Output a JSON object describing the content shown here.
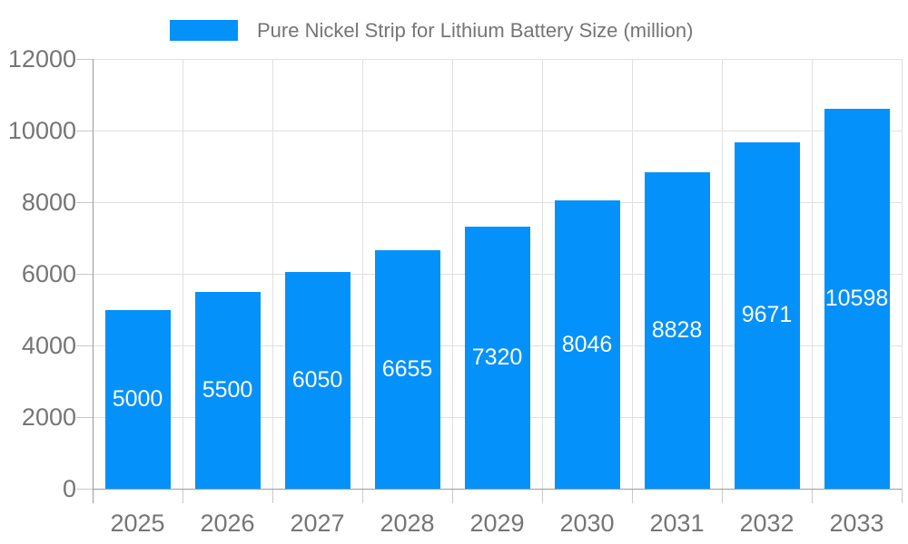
{
  "chart_data": {
    "type": "bar",
    "title": "Pure Nickel Strip for Lithium Battery Size (million)",
    "series_label": "Pure Nickel Strip for Lithium Battery Size (million)",
    "categories": [
      "2025",
      "2026",
      "2027",
      "2028",
      "2029",
      "2030",
      "2031",
      "2032",
      "2033"
    ],
    "values": [
      5000,
      5500,
      6050,
      6655,
      7320,
      8046,
      8828,
      9671,
      10598
    ],
    "xlabel": "",
    "ylabel": "",
    "ylim": [
      0,
      12000
    ],
    "ytick_interval": 2000,
    "ytick_labels": [
      "0",
      "2000",
      "4000",
      "6000",
      "8000",
      "10000",
      "12000"
    ],
    "grid": true,
    "legend_position": "top-center",
    "bar_value_labels_inside": true,
    "colors": {
      "bar": "#0591fa",
      "axis_line": "#9a9a9a",
      "gridline": "#e0e0e0",
      "tick": "#c8c8c8",
      "label_text": "#757575",
      "bar_value_text": "#ffffff",
      "background": "#ffffff"
    }
  }
}
